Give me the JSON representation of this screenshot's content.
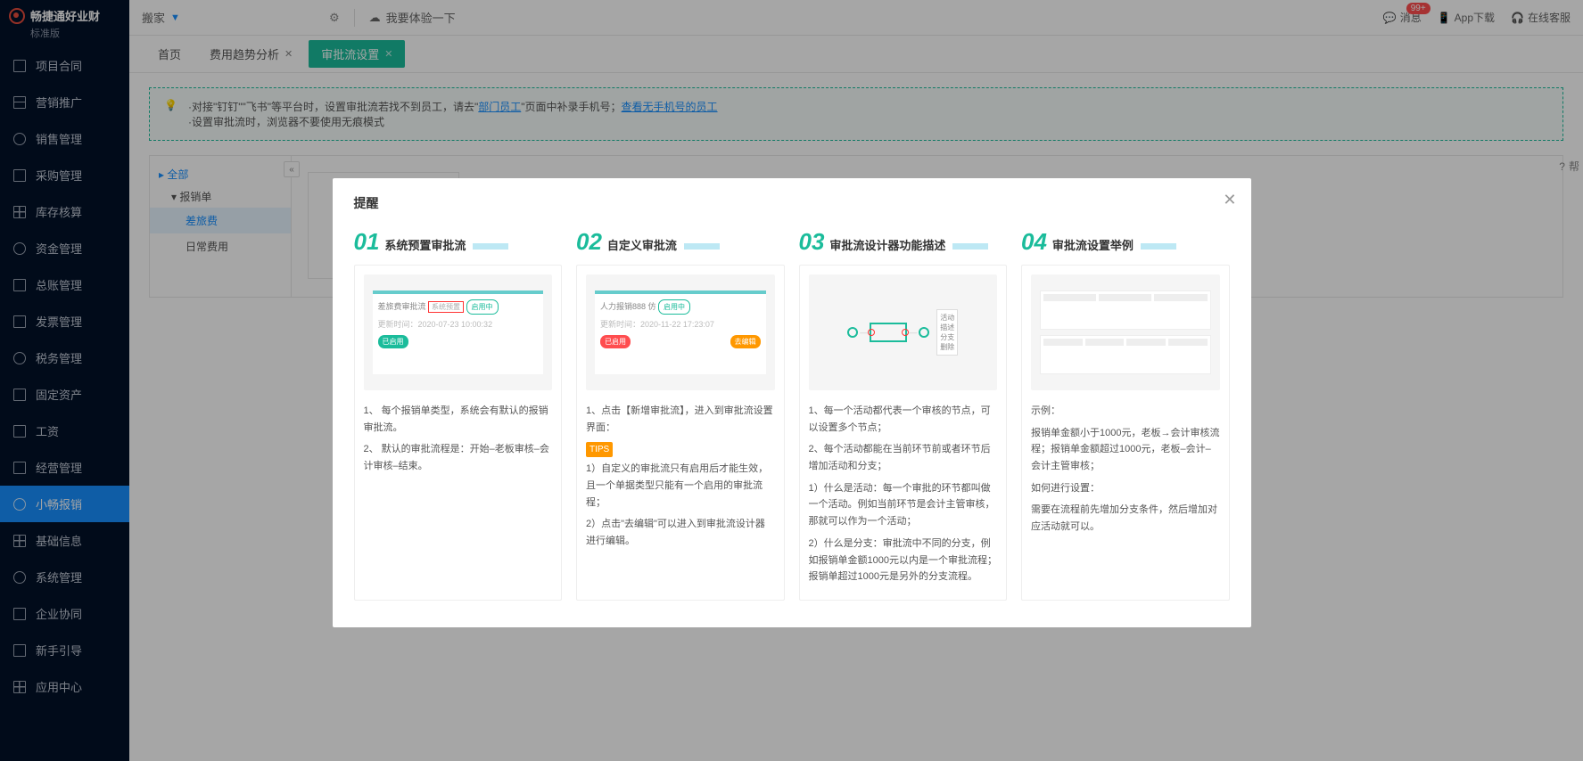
{
  "brand": {
    "name": "畅捷通好业财",
    "edition": "标准版"
  },
  "sidebar": [
    {
      "label": "项目合同",
      "icon": "doc"
    },
    {
      "label": "营销推广",
      "icon": "gift"
    },
    {
      "label": "销售管理",
      "icon": "circ"
    },
    {
      "label": "采购管理",
      "icon": "bag"
    },
    {
      "label": "库存核算",
      "icon": "grid"
    },
    {
      "label": "资金管理",
      "icon": "circ"
    },
    {
      "label": "总账管理",
      "icon": "doc"
    },
    {
      "label": "发票管理",
      "icon": "doc"
    },
    {
      "label": "税务管理",
      "icon": "circ"
    },
    {
      "label": "固定资产",
      "icon": "doc"
    },
    {
      "label": "工资",
      "icon": "doc"
    },
    {
      "label": "经营管理",
      "icon": "doc"
    },
    {
      "label": "小畅报销",
      "icon": "circ",
      "active": true
    },
    {
      "label": "基础信息",
      "icon": "grid"
    },
    {
      "label": "系统管理",
      "icon": "circ"
    },
    {
      "label": "企业协同",
      "icon": "doc"
    },
    {
      "label": "新手引导",
      "icon": "doc"
    },
    {
      "label": "应用中心",
      "icon": "grid"
    }
  ],
  "topbar": {
    "org": "搬家",
    "trial": "我要体验一下",
    "links": {
      "msg": "消息",
      "msg_badge": "99+",
      "app": "App下载",
      "service": "在线客服"
    }
  },
  "tabs": [
    {
      "label": "首页",
      "closable": false
    },
    {
      "label": "费用趋势分析",
      "closable": true
    },
    {
      "label": "审批流设置",
      "closable": true,
      "active": true
    }
  ],
  "alert": {
    "line1_pre": "·对接\"钉钉\"\"飞书\"等平台时，设置审批流若找不到员工，请去\"",
    "link1": "部门员工",
    "line1_mid": "\"页面中补录手机号；",
    "link2": "查看无手机号的员工",
    "line2": "·设置审批流时，浏览器不要使用无痕模式"
  },
  "tree": {
    "root": "全部",
    "node": "报销单",
    "leaves": [
      "差旅费",
      "日常费用"
    ],
    "selected": 0
  },
  "help_label": "帮",
  "modal": {
    "title": "提醒",
    "cols": [
      {
        "num": "01",
        "title": "系统预置审批流",
        "desc": [
          "1、 每个报销单类型，系统会有默认的报销审批流。",
          "2、 默认的审批流程是：开始–老板审核–会计审核–结束。"
        ],
        "mock": "preset"
      },
      {
        "num": "02",
        "title": "自定义审批流",
        "desc": [
          "1、点击【新增审批流】，进入到审批流设置界面：",
          "TIPS",
          "1）自定义的审批流只有启用后才能生效，且一个单据类型只能有一个启用的审批流程；",
          "2）点击\"去编辑\"可以进入到审批流设计器进行编辑。"
        ],
        "mock": "custom"
      },
      {
        "num": "03",
        "title": "审批流设计器功能描述",
        "desc": [
          "1、每一个活动都代表一个审核的节点，可以设置多个节点；",
          "2、每个活动都能在当前环节前或者环节后增加活动和分支；",
          "1）什么是活动：每一个审批的环节都叫做一个活动。例如当前环节是会计主管审核，那就可以作为一个活动；",
          "2）什么是分支：审批流中不同的分支，例如报销单金额1000元以内是一个审批流程；报销单超过1000元是另外的分支流程。"
        ],
        "mock": "flow"
      },
      {
        "num": "04",
        "title": "审批流设置举例",
        "desc": [
          "示例：",
          "报销单金额小于1000元，老板→会计审核流程；报销单金额超过1000元，老板–会计–会计主管审核；",
          "如何进行设置：",
          "需要在流程前先增加分支条件，然后增加对应活动就可以。"
        ],
        "mock": "example"
      }
    ]
  },
  "colors": {
    "sidebar_bg": "#031129",
    "primary": "#1890ff",
    "accent": "#1bbc9b",
    "badge": "#ff4d4f"
  }
}
